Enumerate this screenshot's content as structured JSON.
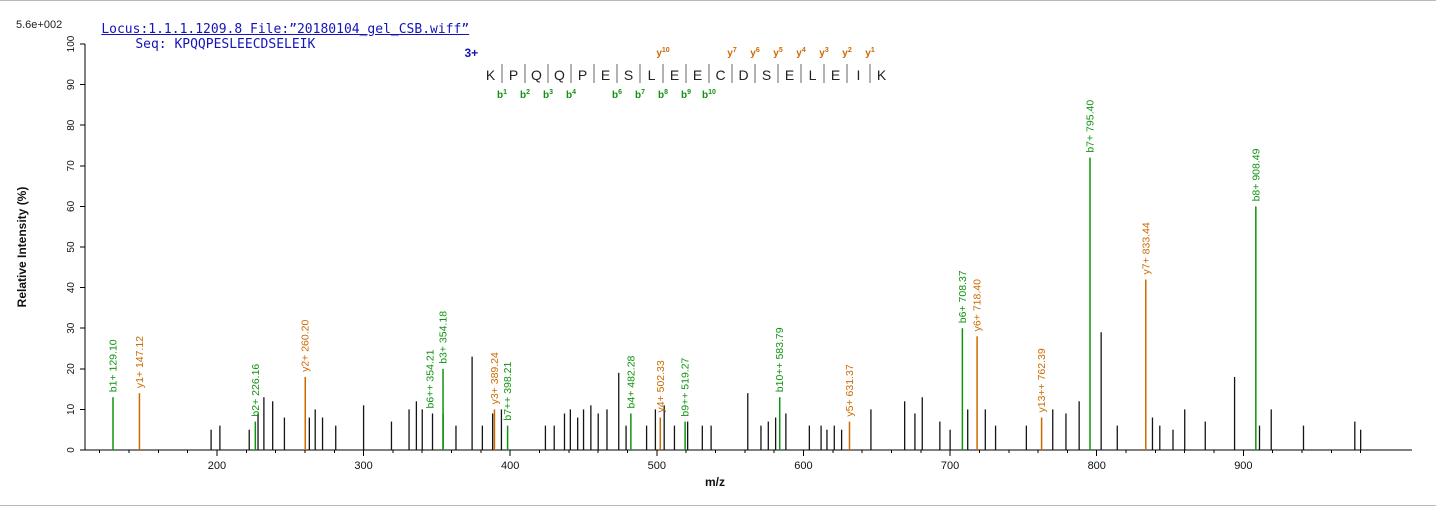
{
  "header": {
    "locus_file": "Locus:1.1.1.1209.8 File:”20180104_gel_CSB.wiff”",
    "seq": "Seq: KPQQPESLEECDSELEIK",
    "max_intensity": "5.6e+002"
  },
  "peptide": {
    "charge": "3+",
    "residues": [
      "K",
      "P",
      "Q",
      "Q",
      "P",
      "E",
      "S",
      "L",
      "E",
      "E",
      "C",
      "D",
      "S",
      "E",
      "L",
      "E",
      "I",
      "K"
    ],
    "b_ions": [
      1,
      2,
      3,
      4,
      6,
      7,
      8,
      9,
      10
    ],
    "y_ions": [
      10,
      7,
      6,
      5,
      4,
      3,
      2,
      1
    ]
  },
  "colors": {
    "header_blue": "#1414b8",
    "b_ion": "#0f930f",
    "y_ion": "#cc6a00",
    "peak": "#141414",
    "axis": "#000000"
  },
  "chart_data": {
    "type": "bar",
    "xlabel": "m/z",
    "ylabel": "Relative Intensity (%)",
    "x_min": 110,
    "x_max": 1015,
    "y_min": 0,
    "y_max": 100,
    "x_ticks": [
      200,
      300,
      400,
      500,
      600,
      700,
      800,
      900
    ],
    "x_minor_step": 20,
    "y_ticks": [
      0,
      10,
      20,
      30,
      40,
      50,
      60,
      70,
      80,
      90,
      100
    ],
    "labeled_peaks": [
      {
        "mz": 129.1,
        "intensity": 13,
        "label": "b1+ 129.10",
        "ion": "b"
      },
      {
        "mz": 147.12,
        "intensity": 14,
        "label": "y1+ 147.12",
        "ion": "y"
      },
      {
        "mz": 226.16,
        "intensity": 7,
        "label": "b2+ 226.16",
        "ion": "b"
      },
      {
        "mz": 260.2,
        "intensity": 18,
        "label": "y2+ 260.20",
        "ion": "y"
      },
      {
        "mz": 354.21,
        "intensity": 9,
        "label": "b6++ 354.21",
        "ion": "b",
        "ldx": -13
      },
      {
        "mz": 354.18,
        "intensity": 20,
        "label": "b3+ 354.18",
        "ion": "b"
      },
      {
        "mz": 389.24,
        "intensity": 10,
        "label": "y3+ 389.24",
        "ion": "y"
      },
      {
        "mz": 398.21,
        "intensity": 6,
        "label": "b7++ 398.21",
        "ion": "b"
      },
      {
        "mz": 482.28,
        "intensity": 9,
        "label": "b4+ 482.28",
        "ion": "b"
      },
      {
        "mz": 502.33,
        "intensity": 8,
        "label": "y4+ 502.33",
        "ion": "y"
      },
      {
        "mz": 519.27,
        "intensity": 7,
        "label": "b9++ 519.27",
        "ion": "b"
      },
      {
        "mz": 583.79,
        "intensity": 13,
        "label": "b10++ 583.79",
        "ion": "b"
      },
      {
        "mz": 631.37,
        "intensity": 7,
        "label": "y5+ 631.37",
        "ion": "y"
      },
      {
        "mz": 708.37,
        "intensity": 30,
        "label": "b6+ 708.37",
        "ion": "b"
      },
      {
        "mz": 718.4,
        "intensity": 28,
        "label": "y6+ 718.40",
        "ion": "y"
      },
      {
        "mz": 762.39,
        "intensity": 8,
        "label": "y13++ 762.39",
        "ion": "y"
      },
      {
        "mz": 795.4,
        "intensity": 72,
        "label": "b7+ 795.40",
        "ion": "b"
      },
      {
        "mz": 833.44,
        "intensity": 42,
        "label": "y7+ 833.44",
        "ion": "y"
      },
      {
        "mz": 908.49,
        "intensity": 60,
        "label": "b8+ 908.49",
        "ion": "b"
      }
    ],
    "unlabeled_peaks": [
      [
        196,
        5
      ],
      [
        202,
        6
      ],
      [
        222,
        5
      ],
      [
        228,
        9
      ],
      [
        232,
        13
      ],
      [
        238,
        12
      ],
      [
        246,
        8
      ],
      [
        263,
        8
      ],
      [
        267,
        10
      ],
      [
        272,
        8
      ],
      [
        281,
        6
      ],
      [
        300,
        11
      ],
      [
        319,
        7
      ],
      [
        331,
        10
      ],
      [
        336,
        12
      ],
      [
        340,
        10
      ],
      [
        347,
        9
      ],
      [
        363,
        6
      ],
      [
        374,
        23
      ],
      [
        381,
        6
      ],
      [
        388,
        9
      ],
      [
        394,
        10
      ],
      [
        424,
        6
      ],
      [
        430,
        6
      ],
      [
        437,
        9
      ],
      [
        441,
        10
      ],
      [
        446,
        8
      ],
      [
        450,
        10
      ],
      [
        455,
        11
      ],
      [
        460,
        9
      ],
      [
        466,
        10
      ],
      [
        474,
        19
      ],
      [
        479,
        6
      ],
      [
        493,
        6
      ],
      [
        499,
        10
      ],
      [
        505,
        11
      ],
      [
        512,
        6
      ],
      [
        521,
        7
      ],
      [
        531,
        6
      ],
      [
        537,
        6
      ],
      [
        562,
        14
      ],
      [
        571,
        6
      ],
      [
        576,
        7
      ],
      [
        581,
        8
      ],
      [
        588,
        9
      ],
      [
        604,
        6
      ],
      [
        612,
        6
      ],
      [
        616,
        5
      ],
      [
        621,
        6
      ],
      [
        626,
        5
      ],
      [
        646,
        10
      ],
      [
        669,
        12
      ],
      [
        676,
        9
      ],
      [
        681,
        13
      ],
      [
        693,
        7
      ],
      [
        700,
        5
      ],
      [
        712,
        10
      ],
      [
        724,
        10
      ],
      [
        731,
        6
      ],
      [
        752,
        6
      ],
      [
        770,
        10
      ],
      [
        779,
        9
      ],
      [
        788,
        12
      ],
      [
        803,
        29
      ],
      [
        814,
        6
      ],
      [
        838,
        8
      ],
      [
        843,
        6
      ],
      [
        852,
        5
      ],
      [
        860,
        10
      ],
      [
        874,
        7
      ],
      [
        894,
        18
      ],
      [
        911,
        6
      ],
      [
        919,
        10
      ],
      [
        941,
        6
      ],
      [
        976,
        7
      ],
      [
        980,
        5
      ]
    ]
  }
}
